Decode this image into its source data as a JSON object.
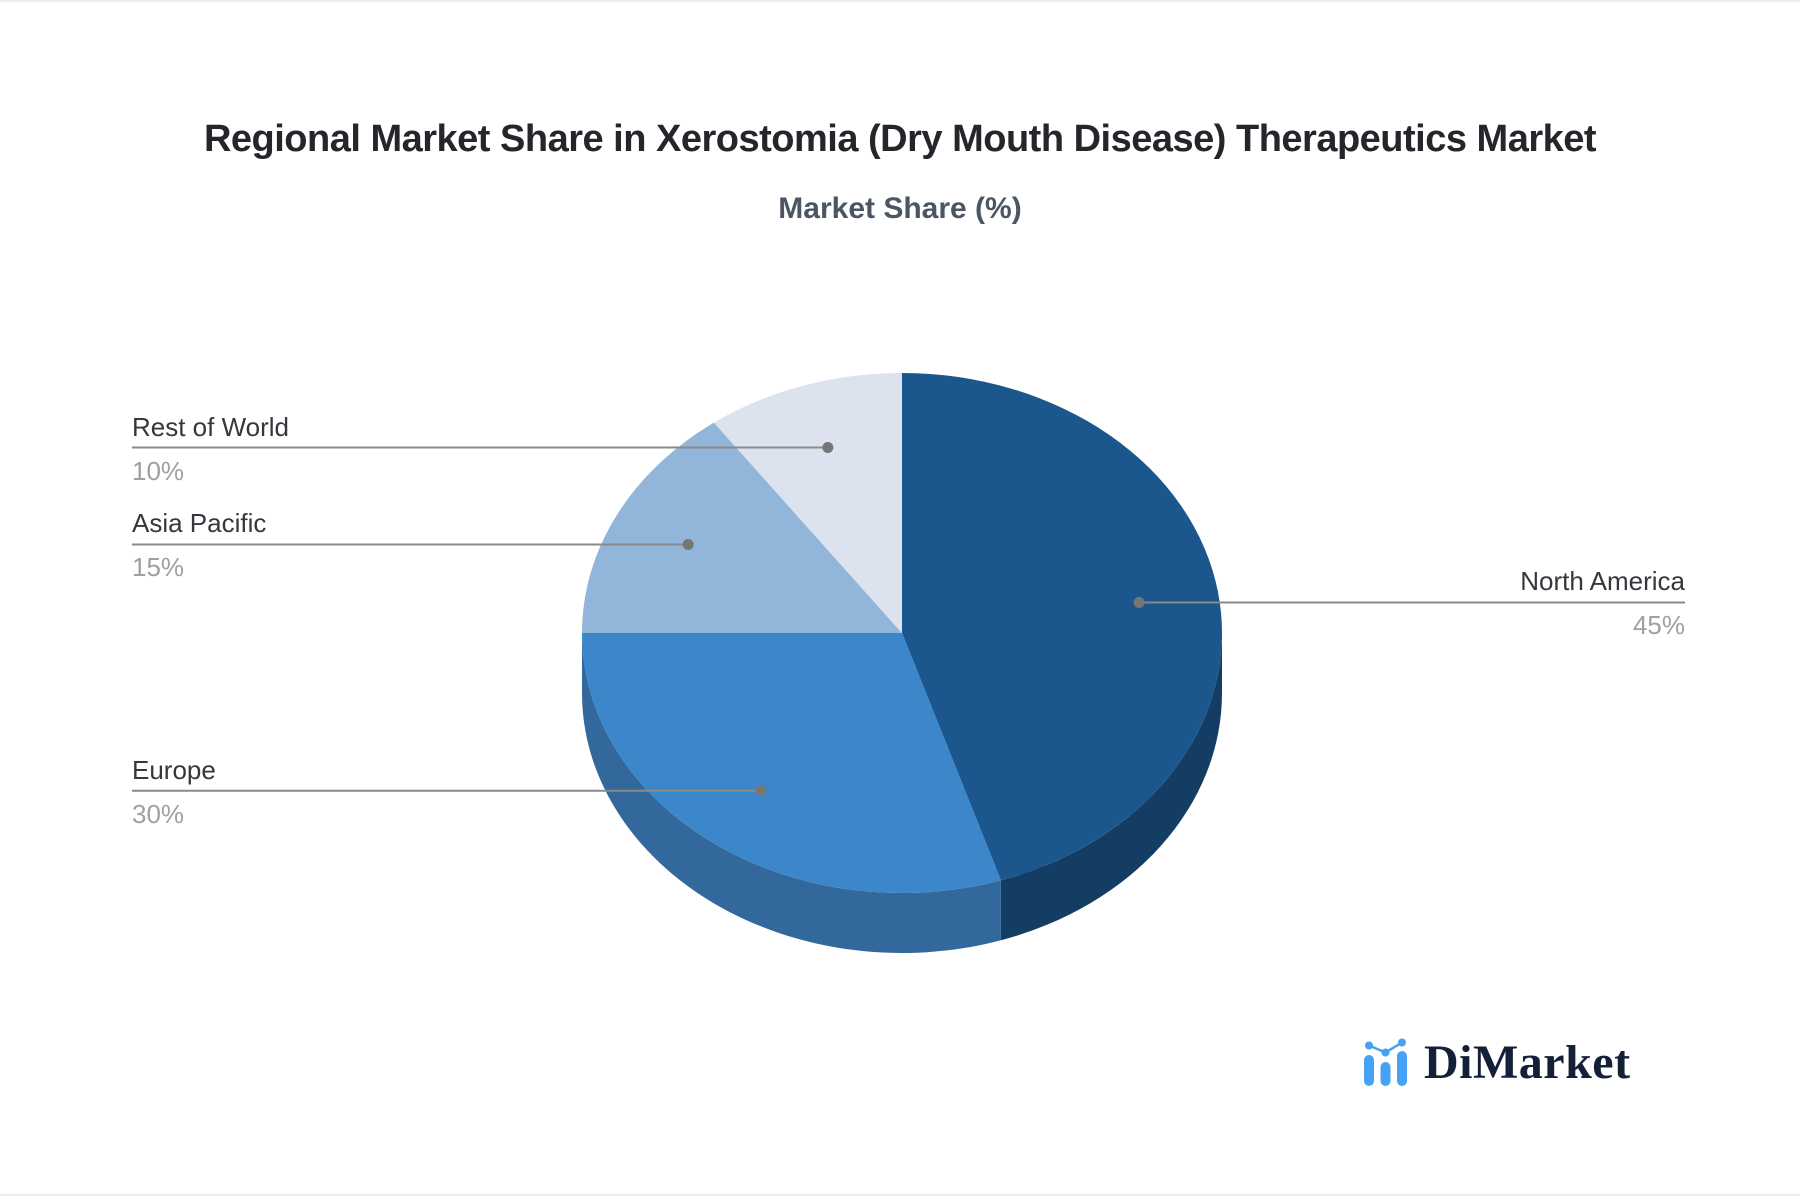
{
  "chart_data": {
    "type": "pie",
    "title": "Regional Market Share in Xerostomia (Dry Mouth Disease) Therapeutics Market",
    "subtitle": "Market Share (%)",
    "unit": "%",
    "effect": "3d",
    "start_angle": "12-o-clock",
    "direction": "clockwise",
    "slices": [
      {
        "label": "North America",
        "value": 45,
        "display": "45%",
        "color": "#1b568c",
        "side_color": "#133d63",
        "label_side": "right"
      },
      {
        "label": "Europe",
        "value": 30,
        "display": "30%",
        "color": "#3c87c9",
        "side_color": "#32689c",
        "label_side": "left"
      },
      {
        "label": "Asia Pacific",
        "value": 15,
        "display": "15%",
        "color": "#92b5da",
        "side_color": null,
        "label_side": "left"
      },
      {
        "label": "Rest of World",
        "value": 10,
        "display": "10%",
        "color": "#dde3ee",
        "side_color": null,
        "label_side": "left"
      }
    ]
  },
  "logo": {
    "text": "DiMarket",
    "icon": "bar-line-chart-icon"
  },
  "theme": {
    "background": "#ffffff",
    "frame_line_color": "#eceff1",
    "title_color": "#24262b",
    "subtitle_color": "#4b5563",
    "label_color": "#34383d",
    "value_color": "#9da0a5",
    "line_color": "#8a8a8a",
    "dot_color": "#767676",
    "logo_text_color": "#141f38",
    "logo_icon_color": "#47a1f5"
  }
}
